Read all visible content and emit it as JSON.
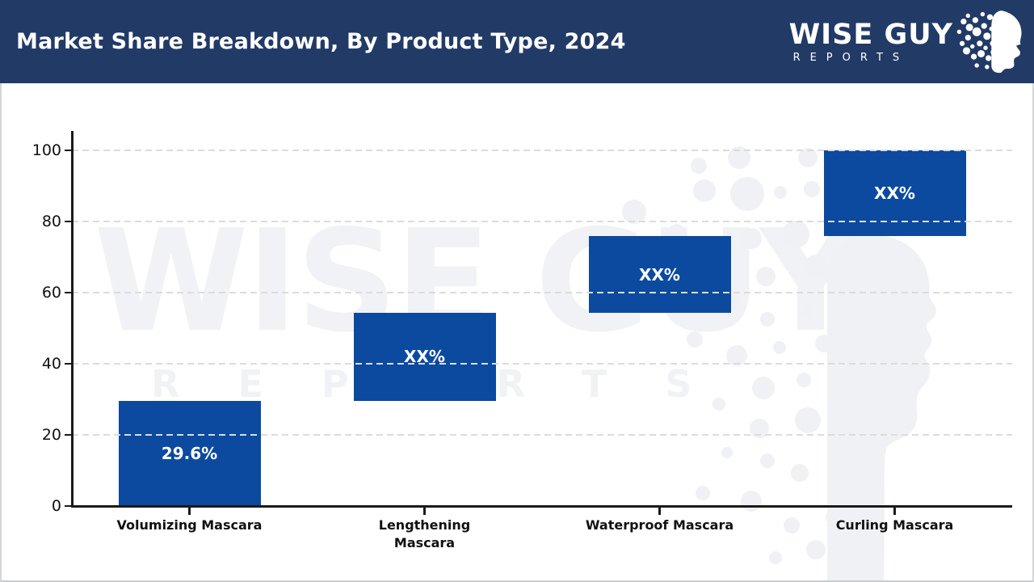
{
  "header": {
    "title": "Market Share Breakdown, By Product Type, 2024",
    "logo": {
      "primary": "WISE GUY",
      "secondary": "REPORTS"
    }
  },
  "watermark": {
    "line1": "WISE GUY",
    "line2": "REPORTS"
  },
  "chart_data": {
    "type": "bar",
    "subtype": "waterfall",
    "title": "Market Share Breakdown, By Product Type, 2024",
    "categories": [
      "Volumizing Mascara",
      "Lengthening Mascara",
      "Waterproof Mascara",
      "Curling Mascara"
    ],
    "segments": [
      {
        "category": "Volumizing Mascara",
        "category_lines": [
          "Volumizing Mascara"
        ],
        "start": 0,
        "end": 29.6,
        "value": 29.6,
        "label": "29.6%"
      },
      {
        "category": "Lengthening Mascara",
        "category_lines": [
          "Lengthening",
          "Mascara"
        ],
        "start": 29.6,
        "end": 54.3,
        "value": 24.7,
        "label": "XX%"
      },
      {
        "category": "Waterproof Mascara",
        "category_lines": [
          "Waterproof Mascara"
        ],
        "start": 54.3,
        "end": 75.9,
        "value": 21.6,
        "label": "XX%"
      },
      {
        "category": "Curling Mascara",
        "category_lines": [
          "Curling Mascara"
        ],
        "start": 75.9,
        "end": 100,
        "value": 24.1,
        "label": "XX%"
      }
    ],
    "y_ticks": [
      0,
      20,
      40,
      60,
      80,
      100
    ],
    "ylim": [
      0,
      105
    ],
    "xlabel": "",
    "ylabel": "",
    "grid": "horizontal-dashed",
    "legend": false,
    "bar_color": "#0b4a9f",
    "bar_label_color": "#ffffff"
  },
  "colors": {
    "header_bg": "#223a66",
    "bar": "#0b4a9f",
    "axis": "#1a1a1a",
    "grid": "#dcdcdc",
    "text": "#111111",
    "watermark": "#f1f2f5",
    "border": "#d2d5d9"
  }
}
